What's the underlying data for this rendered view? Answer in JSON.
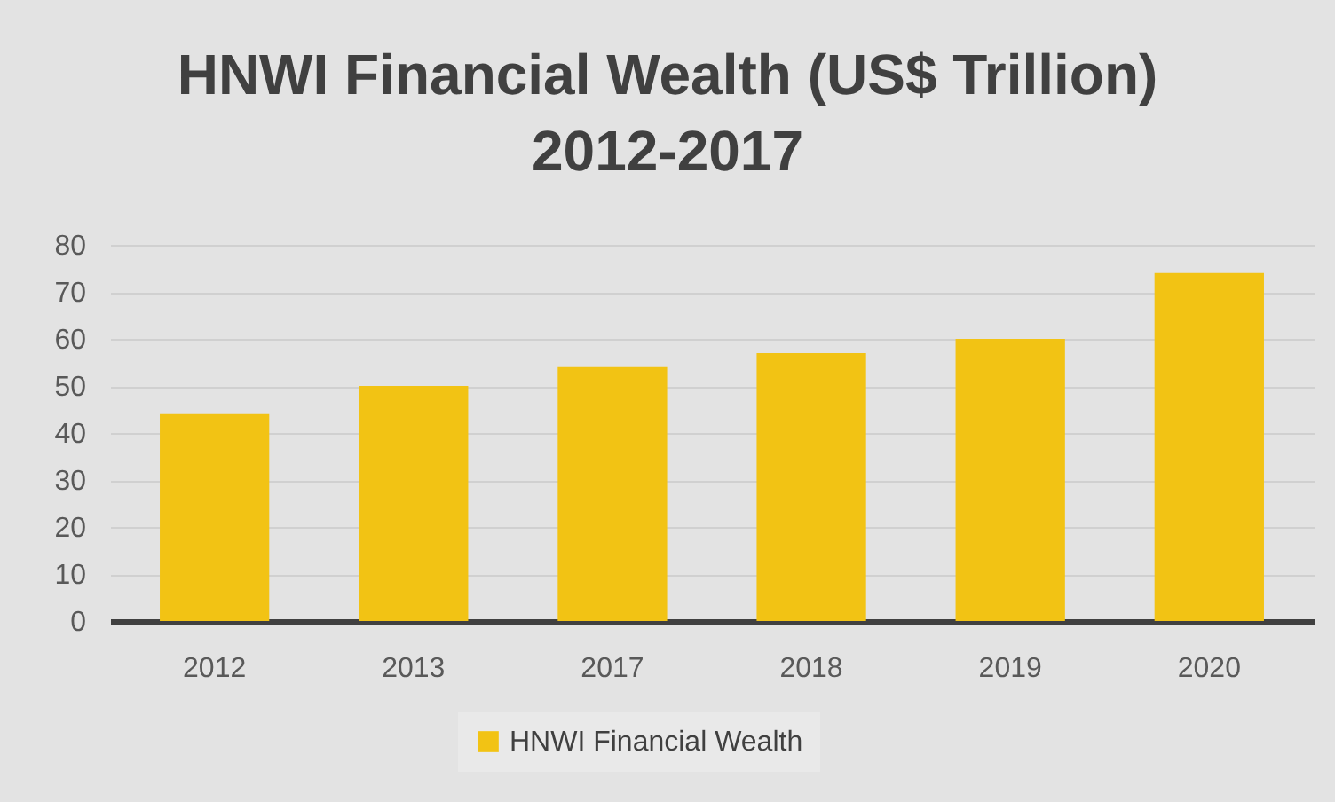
{
  "chart_data": {
    "type": "bar",
    "title": "HNWI Financial Wealth (US$ Trillion)\n2012-2017",
    "categories": [
      "2012",
      "2013",
      "2017",
      "2018",
      "2019",
      "2020"
    ],
    "series": [
      {
        "name": "HNWI Financial Wealth",
        "color": "#f2c314",
        "values": [
          44,
          50,
          54,
          57,
          60,
          74
        ]
      }
    ],
    "ylim": [
      0,
      80
    ],
    "yticks": [
      0,
      10,
      20,
      30,
      40,
      50,
      60,
      70,
      80
    ],
    "grid": "y",
    "legend": "bottom"
  }
}
